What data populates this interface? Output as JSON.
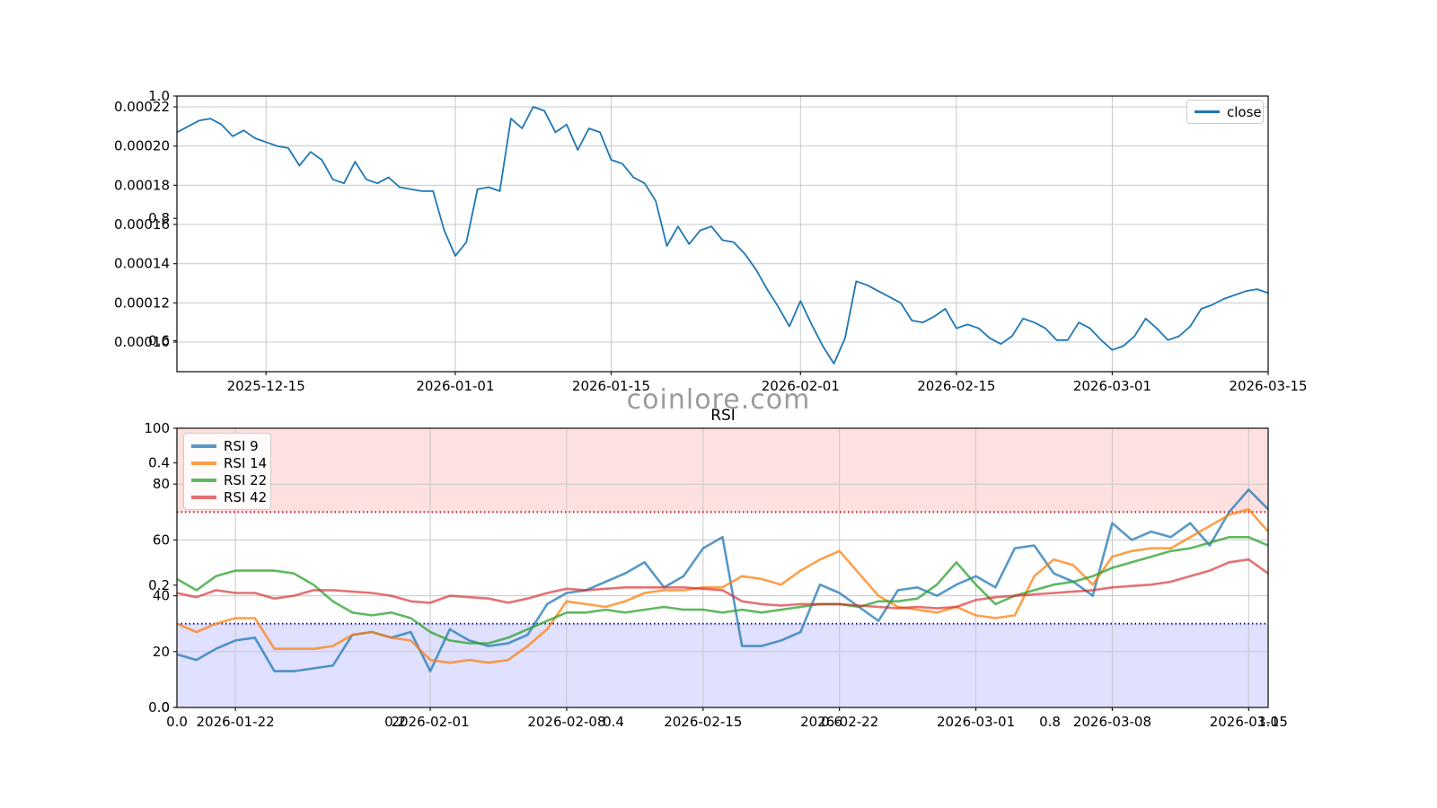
{
  "watermark": "coinlore.com",
  "rsi_title": "RSI",
  "legend": {
    "close": "close"
  },
  "rsi_legend": [
    "RSI 9",
    "RSI 14",
    "RSI 22",
    "RSI 42"
  ],
  "colors": {
    "close": "#1f77b4",
    "rsi_lines": [
      "rgba(31,119,180,0.75)",
      "rgba(255,127,14,0.75)",
      "rgba(44,160,44,0.75)",
      "rgba(214,39,40,0.65)"
    ],
    "grid": "#c8c8c8",
    "spine": "#1a1a1a",
    "overbought_fill": "rgba(255,0,0,0.12)",
    "oversold_fill": "rgba(0,0,255,0.12)",
    "overbought_line": "#cc0011",
    "oversold_line": "#0000bb",
    "watermark_color": "#9b9b9b"
  },
  "hidden_axis": {
    "y_labels": [
      "1.0",
      "0.8",
      "0.6",
      "0.4",
      "0.2",
      "0.0"
    ],
    "x_labels": [
      "0.0",
      "0.2",
      "0.4",
      "0.6",
      "0.8",
      "1.0"
    ]
  },
  "chart_data": [
    {
      "type": "line",
      "name": "price",
      "title": "",
      "legend_position": "upper right",
      "grid": true,
      "x_start_date": "2025-12-07",
      "x_tick_labels": [
        "2025-12-15",
        "2026-01-01",
        "2026-01-15",
        "2026-02-01",
        "2026-02-15",
        "2026-03-01",
        "2026-03-15"
      ],
      "x_tick_idx": [
        8,
        25,
        39,
        56,
        70,
        84,
        98
      ],
      "y_tick_labels": [
        "0.00010",
        "0.00012",
        "0.00014",
        "0.00016",
        "0.00018",
        "0.00020",
        "0.00022"
      ],
      "y_tick_values": [
        0.0001,
        0.00012,
        0.00014,
        0.00016,
        0.00018,
        0.0002,
        0.00022
      ],
      "ylim": [
        8.49e-05,
        0.0002255
      ],
      "series": [
        {
          "name": "close",
          "values": [
            0.000207,
            0.00021,
            0.000213,
            0.000214,
            0.000211,
            0.000205,
            0.000208,
            0.000204,
            0.000202,
            0.0002,
            0.000199,
            0.00019,
            0.000197,
            0.000193,
            0.000183,
            0.000181,
            0.000192,
            0.000183,
            0.000181,
            0.000184,
            0.000179,
            0.000178,
            0.000177,
            0.000177,
            0.000157,
            0.000144,
            0.000151,
            0.000178,
            0.000179,
            0.000177,
            0.000214,
            0.000209,
            0.00022,
            0.000218,
            0.000207,
            0.000211,
            0.000198,
            0.000209,
            0.000207,
            0.000193,
            0.000191,
            0.000184,
            0.000181,
            0.000172,
            0.000149,
            0.000159,
            0.00015,
            0.000157,
            0.000159,
            0.000152,
            0.000151,
            0.000145,
            0.000137,
            0.000127,
            0.000118,
            0.000108,
            0.000121,
            0.000109,
            9.8e-05,
            8.9e-05,
            0.000102,
            0.000131,
            0.000129,
            0.000126,
            0.000123,
            0.00012,
            0.000111,
            0.00011,
            0.000113,
            0.000117,
            0.000107,
            0.000109,
            0.000107,
            0.000102,
            9.9e-05,
            0.000103,
            0.000112,
            0.00011,
            0.000107,
            0.000101,
            0.000101,
            0.00011,
            0.000107,
            0.000101,
            9.6e-05,
            9.8e-05,
            0.000103,
            0.000112,
            0.000107,
            0.000101,
            0.000103,
            0.000108,
            0.000117,
            0.000119,
            0.000122,
            0.000124,
            0.000126,
            0.000127,
            0.000125
          ]
        }
      ]
    },
    {
      "type": "line",
      "name": "rsi",
      "title": "RSI",
      "legend_position": "upper left",
      "grid": true,
      "x_start_date": "2026-01-19",
      "x_tick_labels": [
        "2026-01-22",
        "2026-02-01",
        "2026-02-08",
        "2026-02-15",
        "2026-02-22",
        "2026-03-01",
        "2026-03-08",
        "2026-03-15"
      ],
      "x_tick_idx": [
        3,
        13,
        20,
        27,
        34,
        41,
        48,
        55
      ],
      "y_tick_labels": [
        "0",
        "20",
        "40",
        "60",
        "80",
        "100"
      ],
      "y_tick_values": [
        0,
        20,
        40,
        60,
        80,
        100
      ],
      "ylim": [
        0,
        100
      ],
      "overbought_level": 70,
      "oversold_level": 30,
      "series": [
        {
          "name": "RSI 9",
          "values": [
            19,
            17,
            21,
            24,
            25,
            13,
            13,
            14,
            15,
            26,
            27,
            25,
            27,
            13,
            28,
            24,
            22,
            23,
            26,
            37,
            41,
            42,
            45,
            48,
            52,
            43,
            47,
            57,
            61,
            22,
            22,
            24,
            27,
            44,
            41,
            36,
            31,
            42,
            43,
            40,
            44,
            47,
            43,
            57,
            58,
            48,
            45,
            40,
            66,
            60,
            63,
            61,
            66,
            58,
            70,
            78,
            71
          ]
        },
        {
          "name": "RSI 14",
          "values": [
            30,
            27,
            30,
            32,
            32,
            21,
            21,
            21,
            22,
            26,
            27,
            25,
            24,
            17,
            16,
            17,
            16,
            17,
            22,
            28,
            38,
            37,
            36,
            38,
            41,
            42,
            42,
            43,
            43,
            47,
            46,
            44,
            49,
            53,
            56,
            48,
            40,
            36,
            35,
            34,
            36,
            33,
            32,
            33,
            47,
            53,
            51,
            44,
            54,
            56,
            57,
            57,
            61,
            65,
            69,
            71,
            63
          ]
        },
        {
          "name": "RSI 22",
          "values": [
            46,
            42,
            47,
            49,
            49,
            49,
            48,
            44,
            38,
            34,
            33,
            34,
            32,
            27,
            24,
            23,
            23,
            25,
            28,
            31,
            34,
            34,
            35,
            34,
            35,
            36,
            35,
            35,
            34,
            35,
            34,
            35,
            36,
            37,
            37,
            36,
            38,
            38,
            39,
            44,
            52,
            44,
            37,
            40,
            42,
            44,
            45,
            47,
            50,
            52,
            54,
            56,
            57,
            59,
            61,
            61,
            58
          ]
        },
        {
          "name": "RSI 42",
          "values": [
            41,
            39.5,
            42,
            41,
            41,
            39,
            40,
            42,
            42,
            41.5,
            41,
            40,
            38,
            37.5,
            40,
            39.5,
            39,
            37.5,
            39,
            41,
            42.5,
            42,
            42.5,
            43,
            43,
            43,
            43,
            42.5,
            42,
            38,
            37,
            36.5,
            37,
            37,
            37,
            36.5,
            36,
            35.5,
            36,
            35.5,
            36,
            38.5,
            39.5,
            40,
            40.5,
            41,
            41.5,
            42,
            43,
            43.5,
            44,
            45,
            47,
            49,
            52,
            53,
            48
          ]
        }
      ]
    }
  ]
}
